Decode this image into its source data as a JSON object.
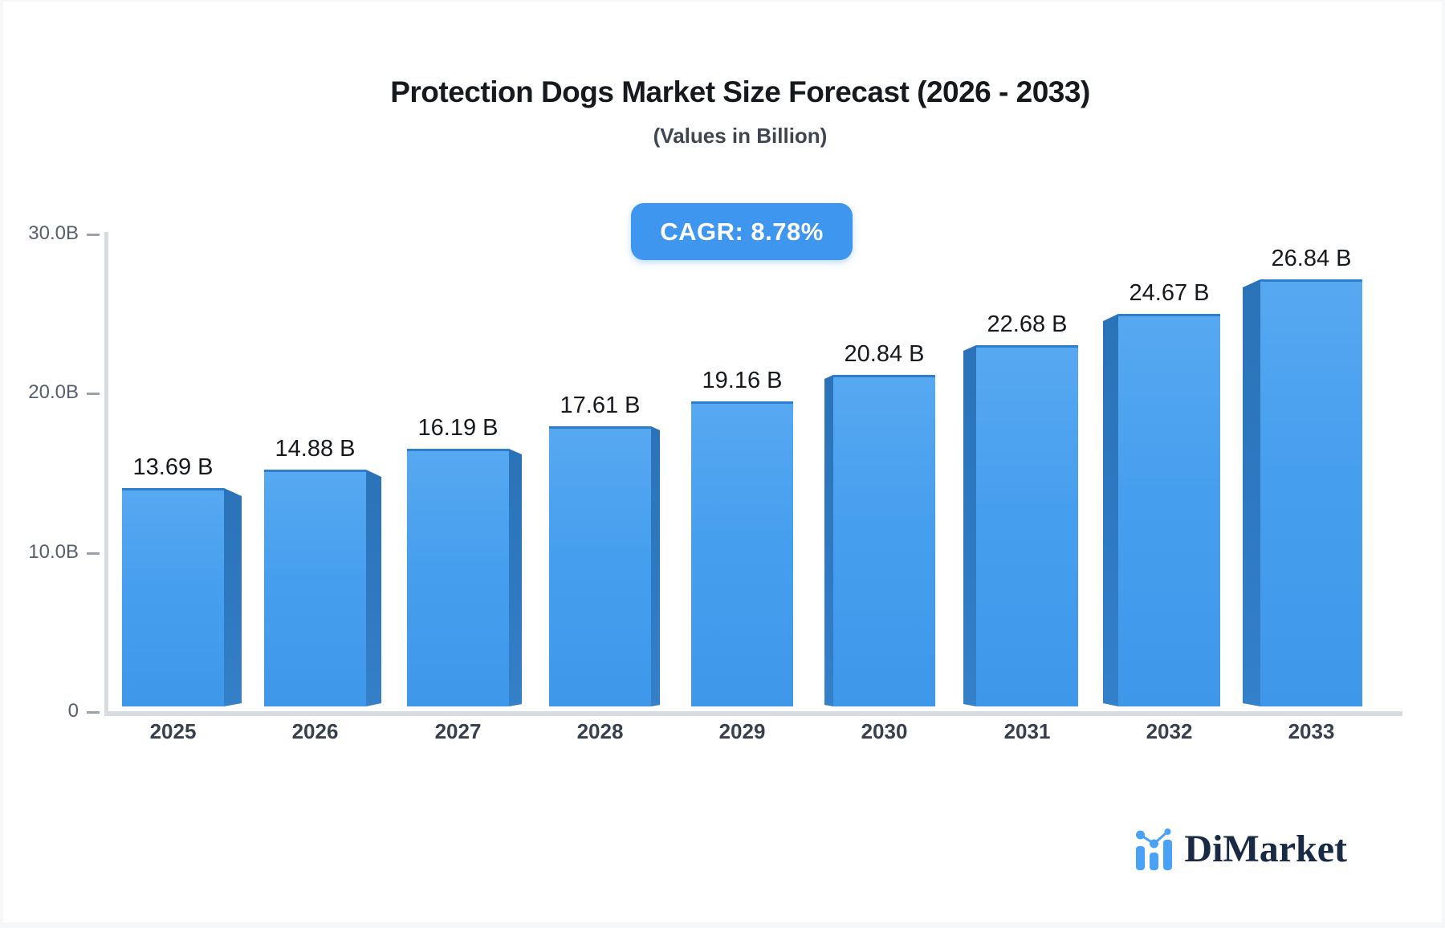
{
  "frame": {
    "background": "#f6f7f8",
    "card_background": "#ffffff"
  },
  "header": {
    "title": "Protection Dogs Market Size Forecast (2026 - 2033)",
    "subtitle": "(Values in Billion)"
  },
  "badge": {
    "label": "CAGR: 8.78%",
    "background": "#3e96ee",
    "text_color": "#ffffff"
  },
  "chart_data": {
    "type": "bar",
    "title": "Protection Dogs Market Size Forecast (2026 - 2033)",
    "subtitle": "(Values in Billion)",
    "cagr_label": "CAGR: 8.78%",
    "categories": [
      "2025",
      "2026",
      "2027",
      "2028",
      "2029",
      "2030",
      "2031",
      "2032",
      "2033"
    ],
    "values": [
      13.69,
      14.88,
      16.19,
      17.61,
      19.16,
      20.84,
      22.68,
      24.67,
      26.84
    ],
    "bar_labels": [
      "13.69 B",
      "14.88 B",
      "16.19 B",
      "17.61 B",
      "19.16 B",
      "20.84 B",
      "22.68 B",
      "24.67 B",
      "26.84 B"
    ],
    "y_tick_labels": [
      "30.0B",
      "20.0B",
      "10.0B",
      "0"
    ],
    "y_tick_values": [
      30,
      20,
      10,
      0
    ],
    "ylim": [
      0,
      30
    ],
    "xlabel": "",
    "ylabel": "",
    "grid": "off",
    "legend": "none",
    "bar_color": "#459fee",
    "bar_side_color": "#2e79c2",
    "style": "3d-perspective-bars, sides face center vanishing point"
  },
  "logo": {
    "text": "DiMarket",
    "icon": "mini-bar-chart-icon",
    "text_color": "#1b2a44",
    "icon_color": "#4aa2f6"
  }
}
